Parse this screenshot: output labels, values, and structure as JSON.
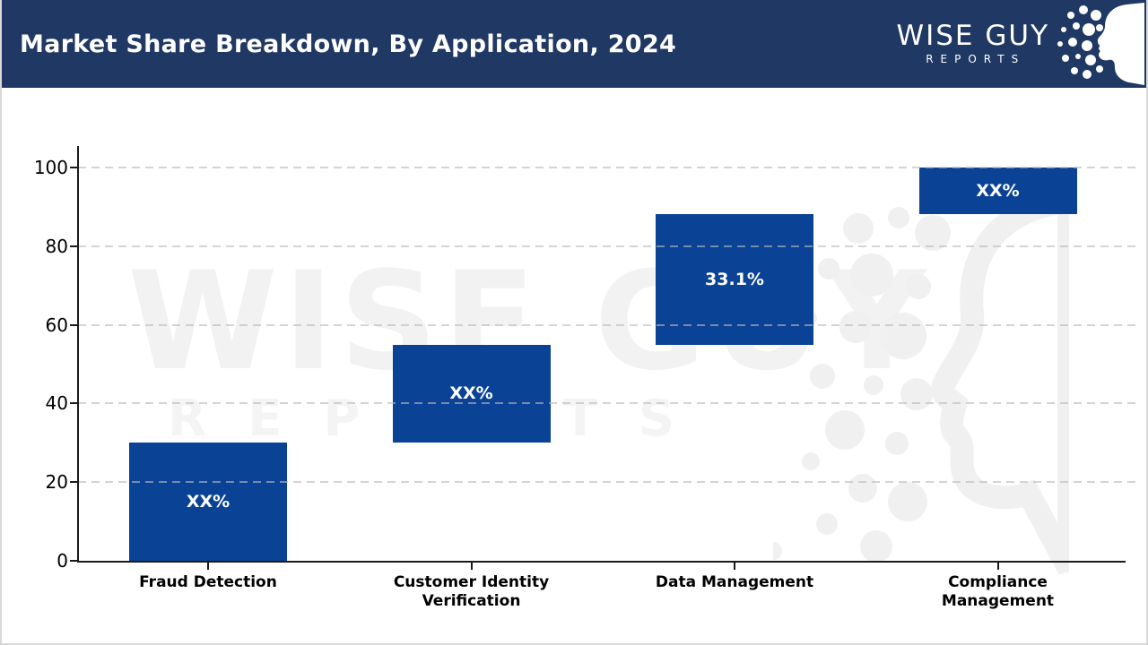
{
  "header": {
    "title": "Market Share Breakdown, By Application, 2024",
    "logo": {
      "line1": "WISE GUY",
      "line2": "REPORTS"
    }
  },
  "watermark": {
    "line1": "WISE GUY",
    "line2": "REPORTS"
  },
  "chart_data": {
    "type": "bar",
    "subtype": "waterfall",
    "title": "Market Share Breakdown, By Application, 2024",
    "categories": [
      "Fraud Detection",
      "Customer Identity Verification",
      "Data Management",
      "Compliance Management"
    ],
    "category_tick_labels": [
      "Fraud Detection",
      "Customer Identity\nVerification",
      "Data Management",
      "Compliance\nManagement"
    ],
    "series": [
      {
        "name": "Market Share (%)",
        "segments": [
          {
            "category": "Fraud Detection",
            "start": 0,
            "end": 30,
            "value_label": "XX%"
          },
          {
            "category": "Customer Identity Verification",
            "start": 30,
            "end": 55,
            "value_label": "XX%"
          },
          {
            "category": "Data Management",
            "start": 55,
            "end": 88.1,
            "value_label": "33.1%"
          },
          {
            "category": "Compliance Management",
            "start": 88.1,
            "end": 100,
            "value_label": "XX%"
          }
        ]
      }
    ],
    "xlabel": "",
    "ylabel": "",
    "ylim": [
      0,
      105
    ],
    "yticks": [
      0,
      20,
      40,
      60,
      80,
      100
    ],
    "grid": "horizontal-dashed",
    "legend": "none",
    "bar_color": "#0a4296",
    "value_label_color": "#ffffff"
  },
  "colors": {
    "header_bg": "#203864",
    "bar": "#0a4296",
    "axis": "#1a1a1a",
    "grid": "#d9d9d9",
    "page_border": "#d9d9d9",
    "watermark": "#f1f1f1"
  }
}
